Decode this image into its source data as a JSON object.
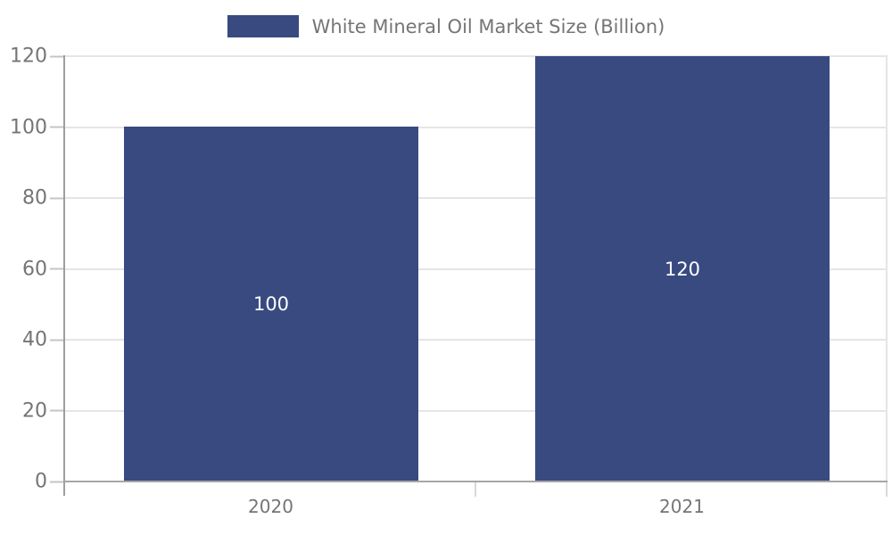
{
  "chart_data": {
    "type": "bar",
    "title": "White Mineral Oil Market Size (Billion)",
    "categories": [
      "2020",
      "2021"
    ],
    "values": [
      100,
      120
    ],
    "value_labels": [
      "100",
      "120"
    ],
    "xlabel": "",
    "ylabel": "",
    "ylim": [
      0,
      120
    ],
    "yticks": [
      0,
      20,
      40,
      60,
      80,
      100,
      120
    ],
    "grid": true,
    "legend_position": "top-center",
    "legend": [
      {
        "label": "White Mineral Oil Market Size (Billion)",
        "swatch_color": "#384a80"
      }
    ],
    "bar_color": "#384a80",
    "value_label_color": "#ffffff",
    "tick_label_color": "#757575",
    "axis_color": "#9e9e9e",
    "grid_color": "#e5e5e5",
    "background_color": "#ffffff"
  }
}
